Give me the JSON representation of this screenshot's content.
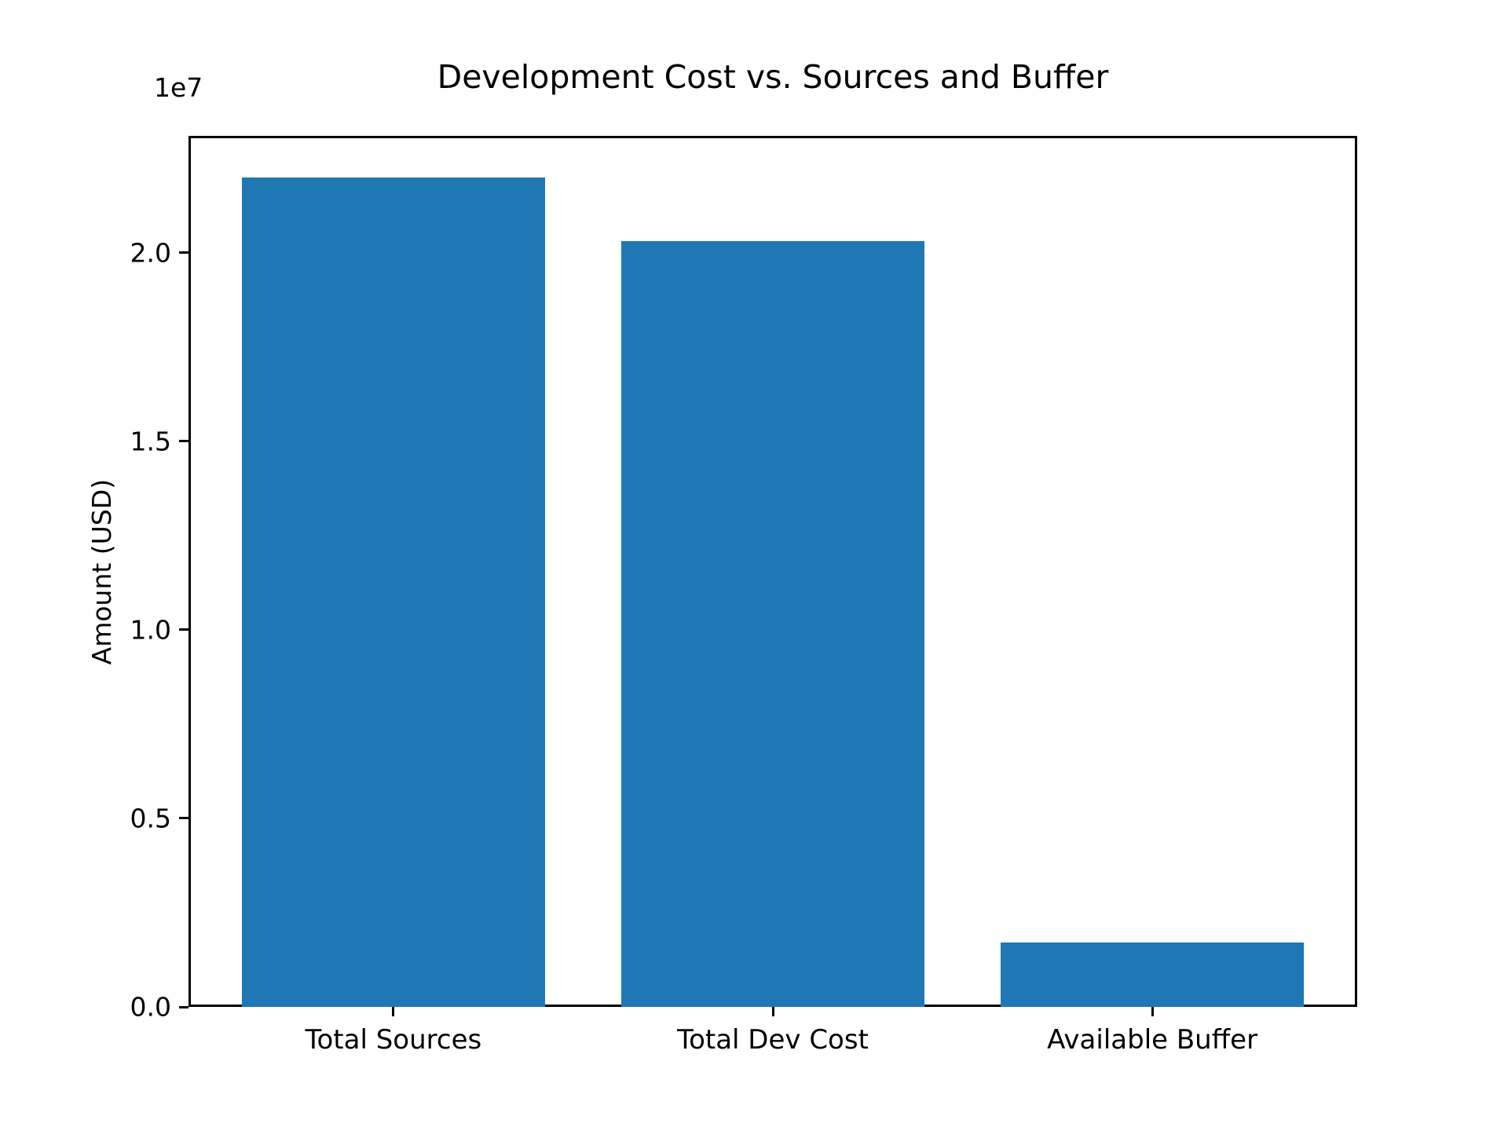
{
  "chart_data": {
    "type": "bar",
    "title": "Development Cost vs. Sources and Buffer",
    "xlabel": "",
    "ylabel": "Amount (USD)",
    "y_offset_text": "1e7",
    "categories": [
      "Total Sources",
      "Total Dev Cost",
      "Available Buffer"
    ],
    "values": [
      22000000,
      20300000,
      1700000
    ],
    "bar_color": "#1f77b4",
    "ylim": [
      0,
      23100000
    ],
    "yticks": [
      {
        "value": 0,
        "label": "0.0"
      },
      {
        "value": 5000000,
        "label": "0.5"
      },
      {
        "value": 10000000,
        "label": "1.0"
      },
      {
        "value": 15000000,
        "label": "1.5"
      },
      {
        "value": 20000000,
        "label": "2.0"
      }
    ],
    "xlim": [
      -0.54,
      2.54
    ],
    "bar_width_fraction": 0.8,
    "grid": false,
    "legend": "none",
    "axes_color": "#000000",
    "background_color": "#ffffff"
  }
}
